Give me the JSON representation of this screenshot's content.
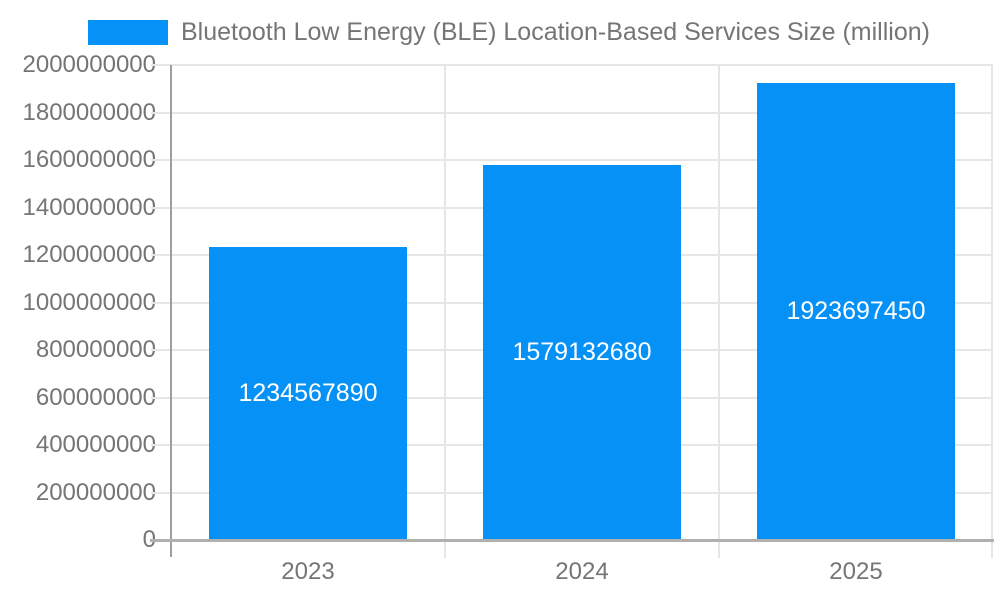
{
  "chart_data": {
    "type": "bar",
    "title": "Bluetooth Low Energy (BLE) Location-Based Services Size (million)",
    "categories": [
      "2023",
      "2024",
      "2025"
    ],
    "values": [
      1234567890,
      1579132680,
      1923697450
    ],
    "bar_labels": [
      "1234567890",
      "1579132680",
      "1923697450"
    ],
    "ylim": [
      0,
      2000000000
    ],
    "y_tick_step": 200000000,
    "y_tick_labels": [
      "2000000000",
      "1800000000",
      "1600000000",
      "1400000000",
      "1200000000",
      "1000000000",
      "800000000",
      "600000000",
      "400000000",
      "200000000",
      "0"
    ],
    "grid": true,
    "legend_position": "top-left",
    "colors": {
      "bar": "#0591f5",
      "bar_label_text": "#ffffff",
      "axis_text": "#757575",
      "gridline": "#e6e6e6",
      "y_axis_line": "#9e9e9e",
      "baseline": "#b0b0b0",
      "background": "#ffffff"
    }
  }
}
